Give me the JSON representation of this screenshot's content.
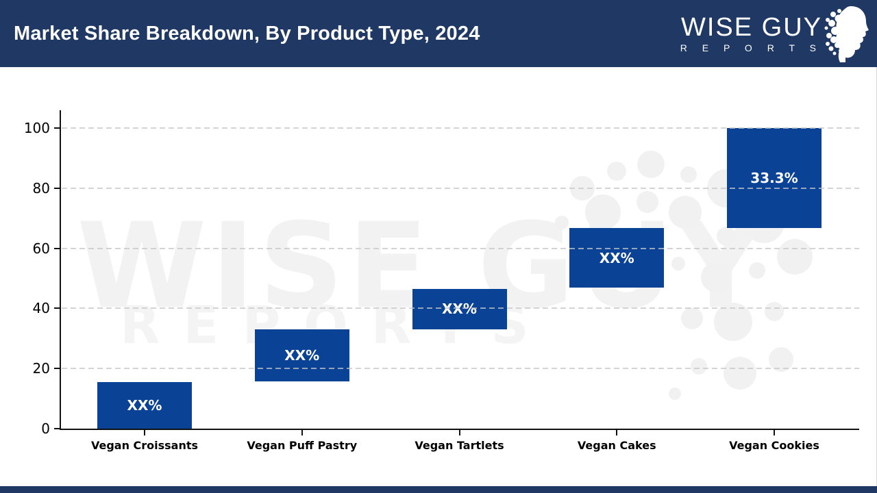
{
  "header": {
    "title": "Market Share Breakdown, By Product Type, 2024",
    "logo": {
      "line1": "WISE GUY",
      "line2": "R E P O R T S"
    }
  },
  "watermark": {
    "line1": "WISE GUY",
    "line2": "REPORTS"
  },
  "footer": {},
  "chart_data": {
    "type": "bar",
    "subtype": "waterfall-breakdown",
    "title": "Market Share Breakdown, By Product Type, 2024",
    "categories": [
      "Vegan Croissants",
      "Vegan Puff Pastry",
      "Vegan Tartlets",
      "Vegan Cakes",
      "Vegan Cookies"
    ],
    "segments": [
      {
        "category": "Vegan Croissants",
        "label": "XX%",
        "start": 0,
        "end": 15.5
      },
      {
        "category": "Vegan Puff Pastry",
        "label": "XX%",
        "start": 15.7,
        "end": 33.0
      },
      {
        "category": "Vegan Tartlets",
        "label": "XX%",
        "start": 33.0,
        "end": 46.5
      },
      {
        "category": "Vegan Cakes",
        "label": "XX%",
        "start": 46.9,
        "end": 66.7
      },
      {
        "category": "Vegan Cookies",
        "label": "33.3%",
        "start": 66.7,
        "end": 100
      }
    ],
    "ylabel": "",
    "xlabel": "",
    "yticks": [
      0,
      20,
      40,
      60,
      80,
      100
    ],
    "ylim": [
      0,
      105
    ],
    "grid": true,
    "grid_style": "dashed",
    "grid_over_bars": true,
    "legend": false,
    "bar_color": "#0a4296",
    "bar_label_color": "#ffffff",
    "header_color": "#1f3864",
    "axis_color": "#111111"
  }
}
